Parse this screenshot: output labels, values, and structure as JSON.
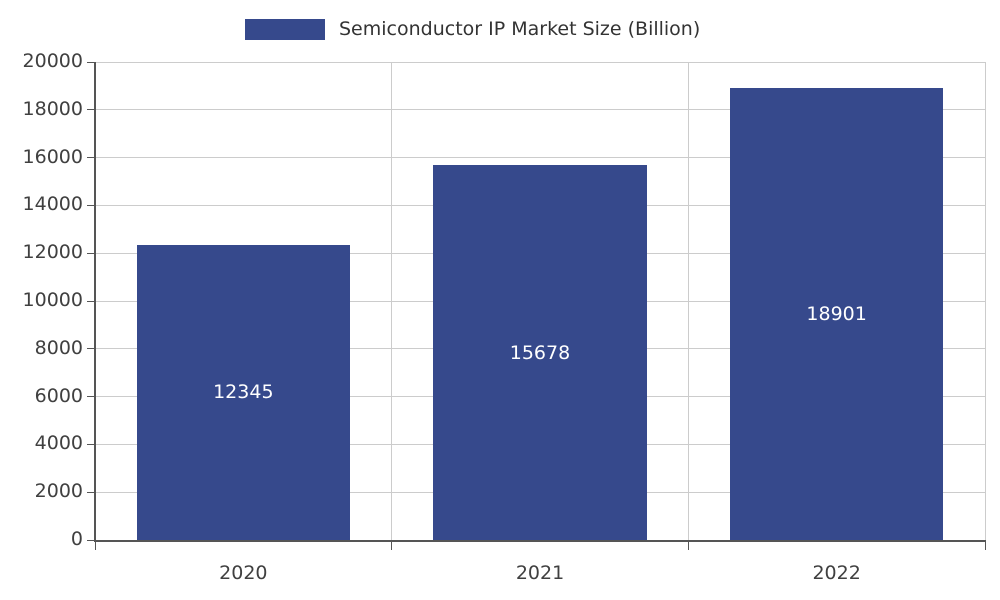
{
  "chart_data": {
    "type": "bar",
    "title": "Semiconductor IP Market Size (Billion)",
    "categories": [
      "2020",
      "2021",
      "2022"
    ],
    "values": [
      12345,
      15678,
      18901
    ],
    "xlabel": "",
    "ylabel": "",
    "ylim": [
      0,
      20000
    ],
    "ytick_step": 2000,
    "grid": true,
    "legend_position": "top-center",
    "bar_color": "#36498c",
    "value_label_color": "#ffffff",
    "axis_color": "#555555",
    "grid_color": "#cccccc",
    "text_color": "#404040"
  },
  "legend": {
    "label": "Semiconductor IP Market Size (Billion)"
  }
}
